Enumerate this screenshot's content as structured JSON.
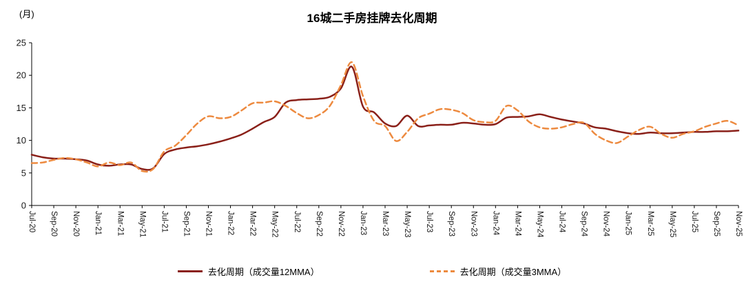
{
  "title": "16城二手房挂牌去化周期",
  "y_unit": "(月)",
  "legend": [
    {
      "label": "去化周期（成交量12MMA）",
      "style": "solid"
    },
    {
      "label": "去化周期（成交量3MMA）",
      "style": "dashed"
    }
  ],
  "chart_data": {
    "type": "line",
    "title": "16城二手房挂牌去化周期",
    "ylabel": "(月)",
    "xlabel": "",
    "ylim": [
      0,
      25
    ],
    "y_ticks": [
      0,
      5,
      10,
      15,
      20,
      25
    ],
    "grid": false,
    "legend_position": "bottom",
    "x_tick_step": 2,
    "categories": [
      "Jul-20",
      "Aug-20",
      "Sep-20",
      "Oct-20",
      "Nov-20",
      "Dec-20",
      "Jan-21",
      "Feb-21",
      "Mar-21",
      "Apr-21",
      "May-21",
      "Jun-21",
      "Jul-21",
      "Aug-21",
      "Sep-21",
      "Oct-21",
      "Nov-21",
      "Dec-21",
      "Jan-22",
      "Feb-22",
      "Mar-22",
      "Apr-22",
      "May-22",
      "Jun-22",
      "Jul-22",
      "Aug-22",
      "Sep-22",
      "Oct-22",
      "Nov-22",
      "Dec-22",
      "Jan-23",
      "Feb-23",
      "Mar-23",
      "Apr-23",
      "May-23",
      "Jun-23",
      "Jul-23",
      "Aug-23",
      "Sep-23",
      "Oct-23",
      "Nov-23",
      "Dec-23",
      "Jan-24",
      "Feb-24",
      "Mar-24",
      "Apr-24",
      "May-24",
      "Jun-24",
      "Jul-24",
      "Aug-24",
      "Sep-24",
      "Oct-24",
      "Nov-24",
      "Dec-24",
      "Jan-25",
      "Feb-25",
      "Mar-25",
      "Apr-25",
      "May-25",
      "Jun-25",
      "Jul-25",
      "Aug-25",
      "Sep-25",
      "Oct-25",
      "Nov-25"
    ],
    "series": [
      {
        "name": "去化周期（成交量12MMA）",
        "color": "#8a2019",
        "dash": false,
        "values": [
          7.8,
          7.4,
          7.2,
          7.2,
          7.1,
          6.9,
          6.3,
          6.1,
          6.3,
          6.3,
          5.6,
          5.7,
          7.9,
          8.6,
          8.9,
          9.1,
          9.4,
          9.8,
          10.3,
          10.9,
          11.8,
          12.8,
          13.6,
          15.8,
          16.2,
          16.3,
          16.4,
          16.7,
          18.0,
          21.3,
          15.2,
          14.3,
          12.6,
          12.2,
          13.8,
          12.2,
          12.3,
          12.4,
          12.4,
          12.7,
          12.6,
          12.4,
          12.5,
          13.5,
          13.6,
          13.7,
          14.0,
          13.6,
          13.2,
          12.9,
          12.6,
          12.0,
          11.8,
          11.4,
          11.1,
          11.0,
          11.2,
          11.1,
          11.1,
          11.2,
          11.3,
          11.3,
          11.4,
          11.4,
          11.5
        ]
      },
      {
        "name": "去化周期（成交量3MMA）",
        "color": "#ed8a3f",
        "dash": true,
        "values": [
          6.5,
          6.6,
          7.0,
          7.3,
          7.1,
          6.6,
          6.0,
          6.6,
          6.2,
          6.6,
          5.3,
          5.6,
          8.3,
          9.2,
          10.8,
          12.6,
          13.7,
          13.4,
          13.6,
          14.6,
          15.7,
          15.8,
          16.0,
          15.3,
          14.2,
          13.4,
          13.9,
          15.3,
          18.5,
          22.0,
          16.8,
          13.0,
          12.2,
          9.9,
          11.3,
          13.4,
          14.1,
          14.8,
          14.7,
          14.2,
          13.1,
          12.8,
          13.0,
          15.3,
          14.6,
          12.9,
          12.0,
          11.8,
          12.0,
          12.5,
          12.7,
          11.0,
          10.0,
          9.6,
          10.6,
          11.6,
          12.1,
          11.0,
          10.4,
          11.0,
          11.4,
          12.1,
          12.6,
          13.0,
          12.3
        ]
      }
    ]
  }
}
